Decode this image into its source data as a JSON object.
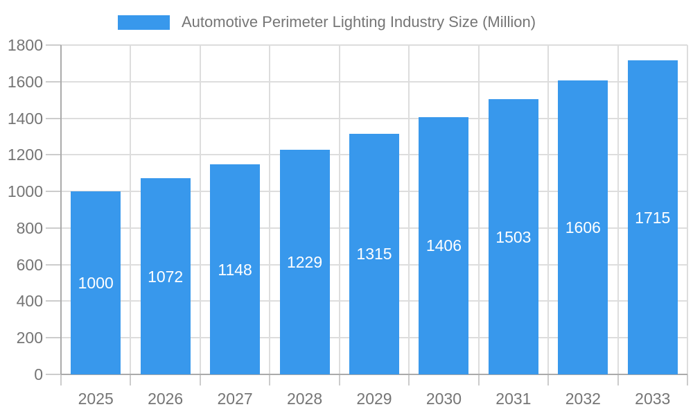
{
  "chart_data": {
    "type": "bar",
    "title": "Automotive Perimeter Lighting Industry Size (Million)",
    "categories": [
      "2025",
      "2026",
      "2027",
      "2028",
      "2029",
      "2030",
      "2031",
      "2032",
      "2033"
    ],
    "series": [
      {
        "name": "Automotive Perimeter Lighting Industry Size (Million)",
        "values": [
          1000,
          1072,
          1148,
          1229,
          1315,
          1406,
          1503,
          1606,
          1715
        ]
      }
    ],
    "xlabel": "",
    "ylabel": "",
    "ylim": [
      0,
      1800
    ],
    "ytick_step": 200,
    "ytick_labels": [
      "0",
      "200",
      "400",
      "600",
      "800",
      "1000",
      "1200",
      "1400",
      "1600",
      "1800"
    ],
    "grid": {
      "horizontal": true,
      "vertical": true
    },
    "legend_position": "top-center",
    "value_labels": {
      "position": "inside-center",
      "color": "#FFFFFF"
    },
    "colors": {
      "bar": "#3898EC",
      "axis_label": "#757575",
      "title_text": "#757575",
      "grid_line": "#DDDDDD",
      "axis_line": "#AAAAAA",
      "tick_line": "#CCCCCC",
      "value_label": "#FFFFFF",
      "background": "#FFFFFF"
    }
  }
}
